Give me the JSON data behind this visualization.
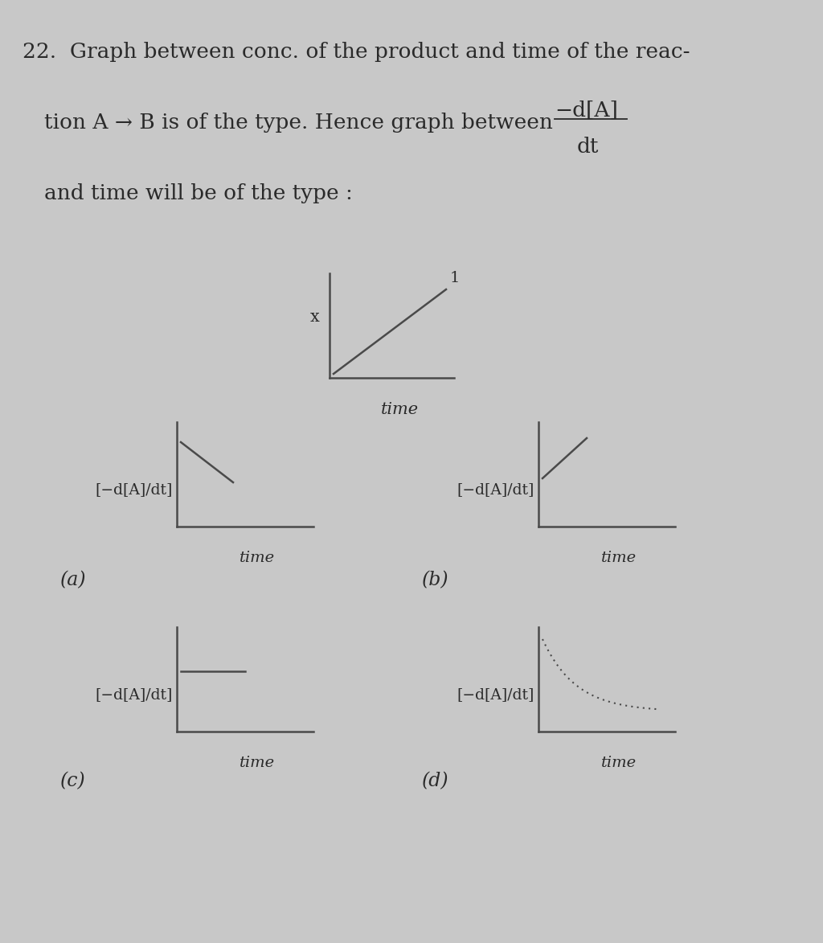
{
  "bg_color": "#c8c8c8",
  "text_color": "#2a2a2a",
  "line_color": "#4a4a4a",
  "title_line1": "22.  Graph between conc. of the product and time of the reac-",
  "title_line2": "tion A → B is of the type. Hence graph between",
  "title_fraction_num": "−d[A]",
  "title_fraction_den": "dt",
  "title_line3": "and time will be of the type :",
  "sub_labels": [
    "(a)",
    "(b)",
    "(c)",
    "(d)"
  ],
  "sub_ylabels": [
    "[−d[A]/dt]",
    "[−d[A]/dt]",
    "[−d[A]/dt]",
    "[−d[A]/dt]"
  ],
  "sub_xlabels": [
    "time",
    "time",
    "time",
    "time"
  ]
}
